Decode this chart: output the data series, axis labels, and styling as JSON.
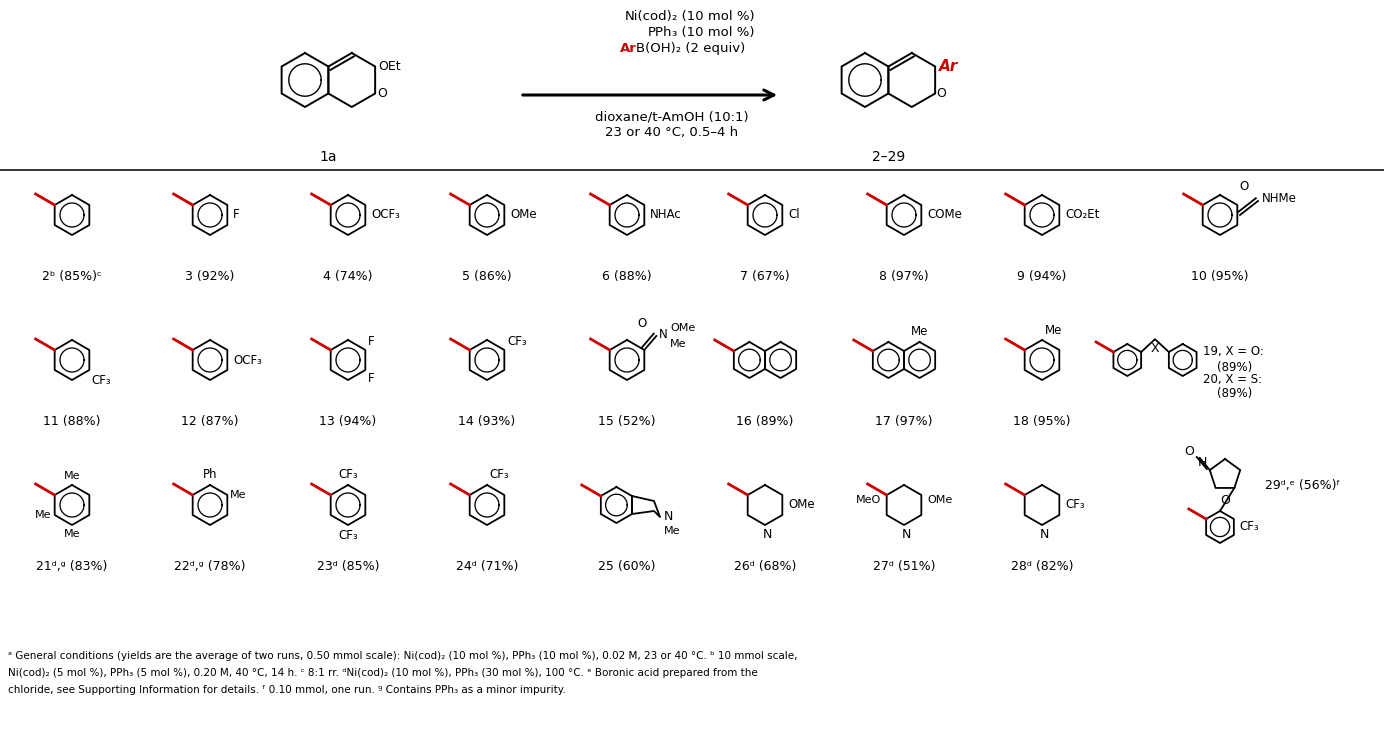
{
  "figsize": [
    13.84,
    7.38
  ],
  "dpi": 100,
  "bg_color": "#ffffff",
  "footnote_lines": [
    "ᵃ General conditions (yields are the average of two runs, 0.50 mmol scale): Ni(cod)₂ (10 mol %), PPh₃ (10 mol %), 0.02 M, 23 or 40 °C. ᵇ 10 mmol scale,",
    "Ni(cod)₂ (5 mol %), PPh₃ (5 mol %), 0.20 M, 40 °C, 14 h. ᶜ 8:1 rr. ᵈNi(cod)₂ (10 mol %), PPh₃ (30 mol %), 100 °C. ᵉ Boronic acid prepared from the",
    "chloride, see Supporting Information for details. ᶠ 0.10 mmol, one run. ᵍ Contains PPh₃ as a minor impurity."
  ]
}
